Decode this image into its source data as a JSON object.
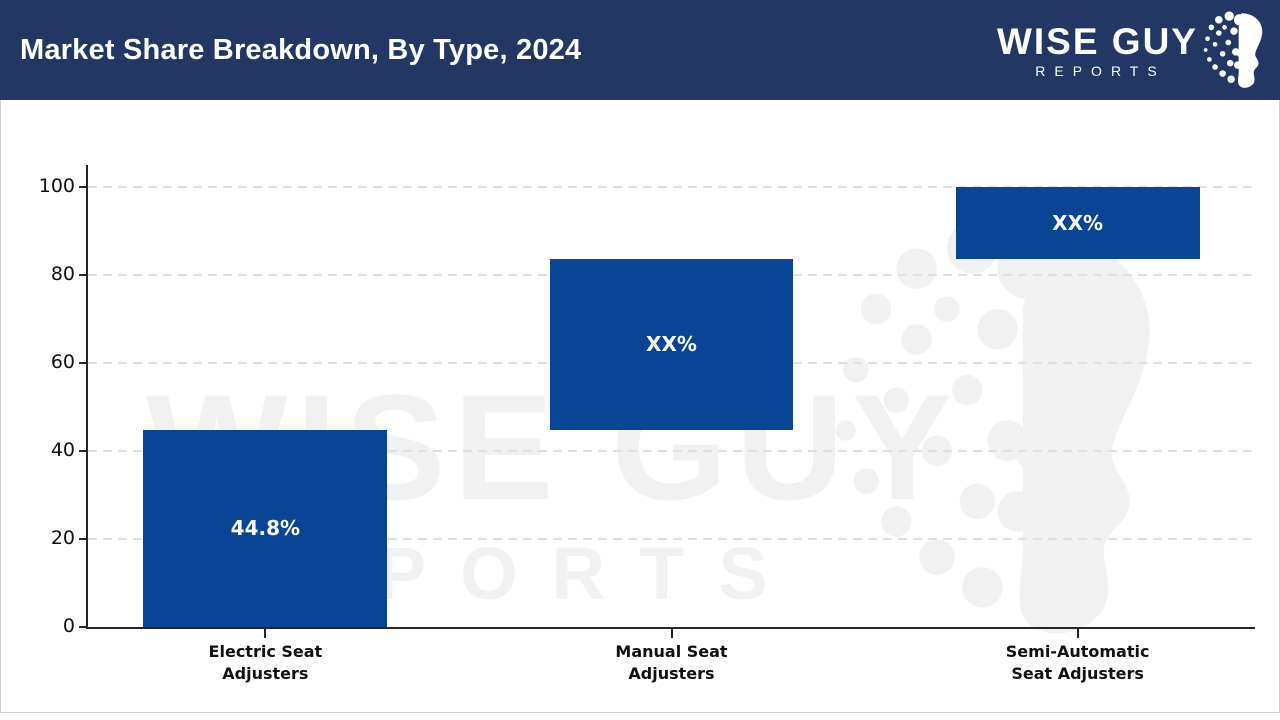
{
  "header": {
    "title": "Market Share Breakdown, By Type, 2024",
    "logo_line1": "WISE GUY",
    "logo_line2": "REPORTS"
  },
  "watermark": {
    "line1": "WISE GUY",
    "line2": "REPORTS"
  },
  "colors": {
    "header_bg": "#223763",
    "bar": "#0a4595",
    "axis": "#262626",
    "grid": "#e0e0e0",
    "bar_label": "#ffffff"
  },
  "chart_data": {
    "type": "bar",
    "subtype": "waterfall",
    "title": "Market Share Breakdown, By Type, 2024",
    "categories": [
      [
        "Electric Seat",
        "Adjusters"
      ],
      [
        "Manual Seat",
        "Adjusters"
      ],
      [
        "Semi-Automatic",
        "Seat Adjusters"
      ]
    ],
    "segments": [
      {
        "start": 0,
        "end": 44.8,
        "label": "44.8%"
      },
      {
        "start": 44.8,
        "end": 83.7,
        "label": "XX%"
      },
      {
        "start": 83.7,
        "end": 100,
        "label": "XX%"
      }
    ],
    "yticks": [
      0,
      20,
      40,
      60,
      80,
      100
    ],
    "ylim": [
      0,
      105
    ],
    "xlabel": "",
    "ylabel": "",
    "grid": "dashed-horizontal",
    "legend": "none"
  }
}
